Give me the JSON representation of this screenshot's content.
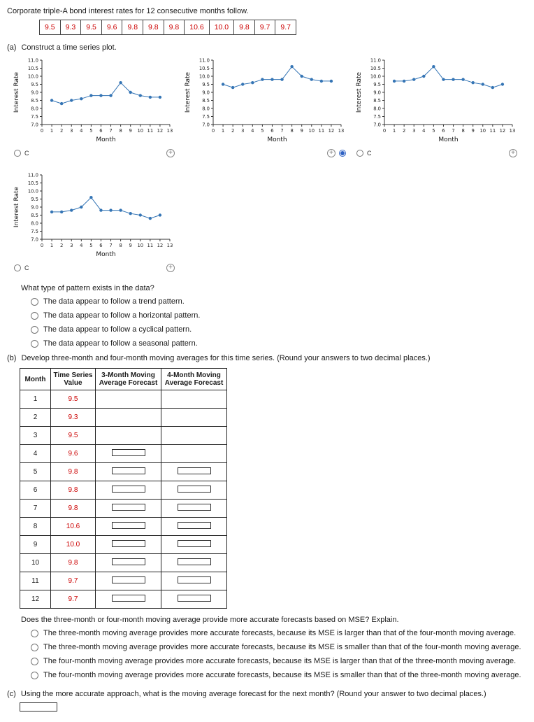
{
  "intro": "Corporate triple-A bond interest rates for 12 consecutive months follow.",
  "rates": [
    "9.5",
    "9.3",
    "9.5",
    "9.6",
    "9.8",
    "9.8",
    "9.8",
    "10.6",
    "10.0",
    "9.8",
    "9.7",
    "9.7"
  ],
  "copyright_mark": "C",
  "colors": {
    "accent_blue": "#3575b5",
    "value_red": "#cc0000",
    "radio_selected_blue": "#2f62c4",
    "axis_color": "#333333"
  },
  "part_a": {
    "label": "(a)",
    "prompt": "Construct a time series plot.",
    "pattern_question": "What type of pattern exists in the data?",
    "pattern_options": [
      "The data appear to follow a trend pattern.",
      "The data appear to follow a horizontal pattern.",
      "The data appear to follow a cyclical pattern.",
      "The data appear to follow a seasonal pattern."
    ]
  },
  "chart_data": [
    {
      "type": "line",
      "option": "A",
      "selected": false,
      "x": [
        1,
        2,
        3,
        4,
        5,
        6,
        7,
        8,
        9,
        10,
        11,
        12
      ],
      "values": [
        8.5,
        8.3,
        8.5,
        8.6,
        8.8,
        8.8,
        8.8,
        9.6,
        9.0,
        8.8,
        8.7,
        8.7
      ],
      "title": "",
      "xlabel": "Month",
      "ylabel": "Interest Rate",
      "xlim": [
        0,
        13
      ],
      "ylim": [
        7.0,
        11.0
      ],
      "ytick_step": 0.5,
      "xtick_step": 1,
      "grid": false,
      "legend": "none"
    },
    {
      "type": "line",
      "option": "B",
      "selected": true,
      "x": [
        1,
        2,
        3,
        4,
        5,
        6,
        7,
        8,
        9,
        10,
        11,
        12
      ],
      "values": [
        9.5,
        9.3,
        9.5,
        9.6,
        9.8,
        9.8,
        9.8,
        10.6,
        10.0,
        9.8,
        9.7,
        9.7
      ],
      "title": "",
      "xlabel": "Month",
      "ylabel": "Interest Rate",
      "xlim": [
        0,
        13
      ],
      "ylim": [
        7.0,
        11.0
      ],
      "ytick_step": 0.5,
      "xtick_step": 1,
      "grid": false,
      "legend": "none"
    },
    {
      "type": "line",
      "option": "C",
      "selected": false,
      "x": [
        1,
        2,
        3,
        4,
        5,
        6,
        7,
        8,
        9,
        10,
        11,
        12
      ],
      "values": [
        9.7,
        9.7,
        9.8,
        10.0,
        10.6,
        9.8,
        9.8,
        9.8,
        9.6,
        9.5,
        9.3,
        9.5
      ],
      "title": "",
      "xlabel": "Month",
      "ylabel": "Interest Rate",
      "xlim": [
        0,
        13
      ],
      "ylim": [
        7.0,
        11.0
      ],
      "ytick_step": 0.5,
      "xtick_step": 1,
      "grid": false,
      "legend": "none"
    },
    {
      "type": "line",
      "option": "D",
      "selected": false,
      "x": [
        1,
        2,
        3,
        4,
        5,
        6,
        7,
        8,
        9,
        10,
        11,
        12
      ],
      "values": [
        8.7,
        8.7,
        8.8,
        9.0,
        9.6,
        8.8,
        8.8,
        8.8,
        8.6,
        8.5,
        8.3,
        8.5
      ],
      "title": "",
      "xlabel": "Month",
      "ylabel": "Interest Rate",
      "xlim": [
        0,
        13
      ],
      "ylim": [
        7.0,
        11.0
      ],
      "ytick_step": 0.5,
      "xtick_step": 1,
      "grid": false,
      "legend": "none"
    }
  ],
  "part_b": {
    "label": "(b)",
    "prompt": "Develop three-month and four-month moving averages for this time series. (Round your answers to two decimal places.)",
    "table": {
      "headers": [
        "Month",
        "Time Series Value",
        "3-Month Moving Average Forecast",
        "4-Month Moving Average Forecast"
      ],
      "rows": [
        {
          "month": "1",
          "value": "9.5",
          "ma3_input": false,
          "ma4_input": false
        },
        {
          "month": "2",
          "value": "9.3",
          "ma3_input": false,
          "ma4_input": false
        },
        {
          "month": "3",
          "value": "9.5",
          "ma3_input": false,
          "ma4_input": false
        },
        {
          "month": "4",
          "value": "9.6",
          "ma3_input": true,
          "ma4_input": false
        },
        {
          "month": "5",
          "value": "9.8",
          "ma3_input": true,
          "ma4_input": true
        },
        {
          "month": "6",
          "value": "9.8",
          "ma3_input": true,
          "ma4_input": true
        },
        {
          "month": "7",
          "value": "9.8",
          "ma3_input": true,
          "ma4_input": true
        },
        {
          "month": "8",
          "value": "10.6",
          "ma3_input": true,
          "ma4_input": true
        },
        {
          "month": "9",
          "value": "10.0",
          "ma3_input": true,
          "ma4_input": true
        },
        {
          "month": "10",
          "value": "9.8",
          "ma3_input": true,
          "ma4_input": true
        },
        {
          "month": "11",
          "value": "9.7",
          "ma3_input": true,
          "ma4_input": true
        },
        {
          "month": "12",
          "value": "9.7",
          "ma3_input": true,
          "ma4_input": true
        }
      ],
      "input_values": ""
    },
    "mse_question": "Does the three-month or four-month moving average provide more accurate forecasts based on MSE? Explain.",
    "mse_options": [
      "The three-month moving average provides more accurate forecasts, because its MSE is larger than that of the four-month moving average.",
      "The three-month moving average provides more accurate forecasts, because its MSE is smaller than that of the four-month moving average.",
      "The four-month moving average provides more accurate forecasts, because its MSE is larger than that of the three-month moving average.",
      "The four-month moving average provides more accurate forecasts, because its MSE is smaller than that of the three-month moving average."
    ]
  },
  "part_c": {
    "label": "(c)",
    "prompt": "Using the more accurate approach, what is the moving average forecast for the next month? (Round your answer to two decimal places.)",
    "input_value": ""
  }
}
